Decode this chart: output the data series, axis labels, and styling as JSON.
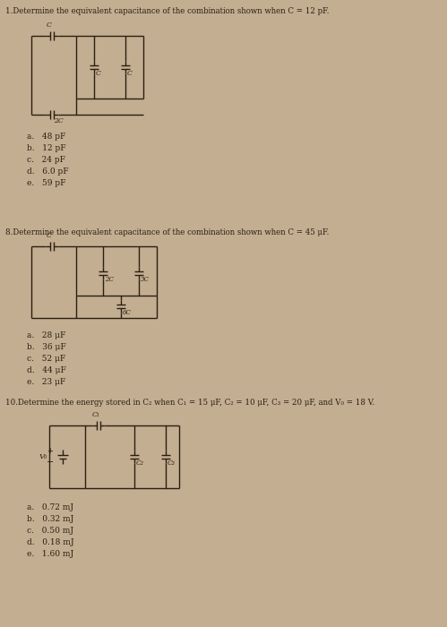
{
  "bg_color": "#c4ae92",
  "text_color": "#2a1f10",
  "title1": "1.Determine the equivalent capacitance of the combination shown when C = 12 pF.",
  "title2": "8.Determine the equivalent capacitance of the combination shown when C = 45 μF.",
  "title3": "10.Determine the energy stored in C₂ when C₁ = 15 μF, C₂ = 10 μF, C₃ = 20 μF, and V₀ = 18 V.",
  "q1_choices": [
    "a.   48 pF",
    "b.   12 pF",
    "c.   24 pF",
    "d.   6.0 pF",
    "e.   59 pF"
  ],
  "q2_choices": [
    "a.   28 μF",
    "b.   36 μF",
    "c.   52 μF",
    "d.   44 μF",
    "e.   23 μF"
  ],
  "q3_choices": [
    "a.   0.72 mJ",
    "b.   0.32 mJ",
    "c.   0.50 mJ",
    "d.   0.18 mJ",
    "e.   1.60 mJ"
  ]
}
